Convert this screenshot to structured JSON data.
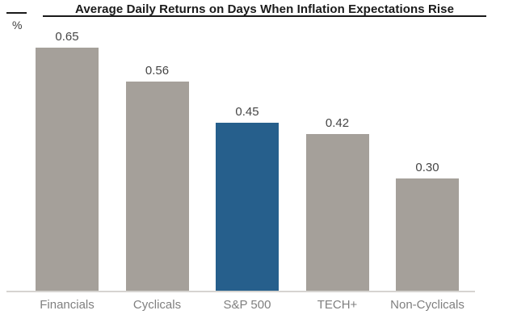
{
  "title": "Average Daily Returns on Days When Inflation Expectations Rise",
  "axis": {
    "unit_label": "%"
  },
  "colors": {
    "bar_default": "#a5a09a",
    "bar_highlight": "#265f8c",
    "title_text": "#1a1a1a",
    "value_label_text": "#454545",
    "category_label_text": "#7f7f7f",
    "axis_line": "#d6d4d1"
  },
  "chart_data": {
    "type": "bar",
    "title": "Average Daily Returns on Days When Inflation Expectations Rise",
    "categories": [
      "Financials",
      "Cyclicals",
      "S&P 500",
      "TECH+",
      "Non-Cyclicals"
    ],
    "values": [
      0.65,
      0.56,
      0.45,
      0.42,
      0.3
    ],
    "value_labels": [
      "0.65",
      "0.56",
      "0.45",
      "0.42",
      "0.30"
    ],
    "highlight_category": "S&P 500",
    "highlight_index": 2,
    "xlabel": "",
    "ylabel": "%",
    "ylim": [
      0,
      0.78
    ],
    "grid": false,
    "legend": "none",
    "value_labels_position": "above-bars"
  }
}
